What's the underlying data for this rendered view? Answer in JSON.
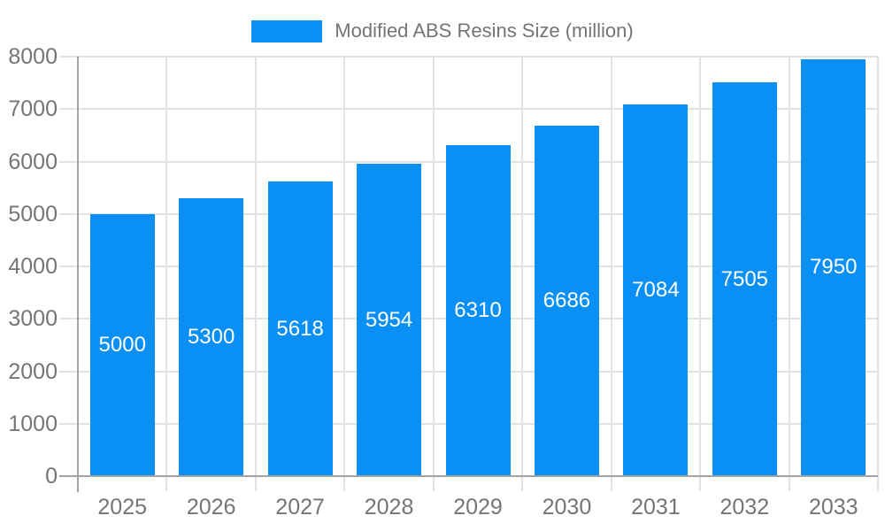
{
  "chart_data": {
    "type": "bar",
    "title": "Modified ABS Resins Size (million)",
    "legend_position": "top",
    "legend": [
      {
        "label": "Modified ABS Resins Size (million)",
        "color": "#0a90f5"
      }
    ],
    "categories": [
      "2025",
      "2026",
      "2027",
      "2028",
      "2029",
      "2030",
      "2031",
      "2032",
      "2033"
    ],
    "values": [
      5000,
      5300,
      5618,
      5954,
      6310,
      6686,
      7084,
      7505,
      7950
    ],
    "bar_value_labels": [
      "5000",
      "5300",
      "5618",
      "5954",
      "6310",
      "6686",
      "7084",
      "7505",
      "7950"
    ],
    "xlabel": "",
    "ylabel": "",
    "ylim": [
      0,
      8000
    ],
    "yticks": [
      0,
      1000,
      2000,
      3000,
      4000,
      5000,
      6000,
      7000,
      8000
    ],
    "grid": true,
    "colors": {
      "bar": "#0a90f5",
      "bar_value_text": "#ffffff",
      "axis_text": "#757575",
      "grid_line": "#e2e2e2",
      "axis_line": "#a3a3a3",
      "background": "#ffffff"
    }
  }
}
